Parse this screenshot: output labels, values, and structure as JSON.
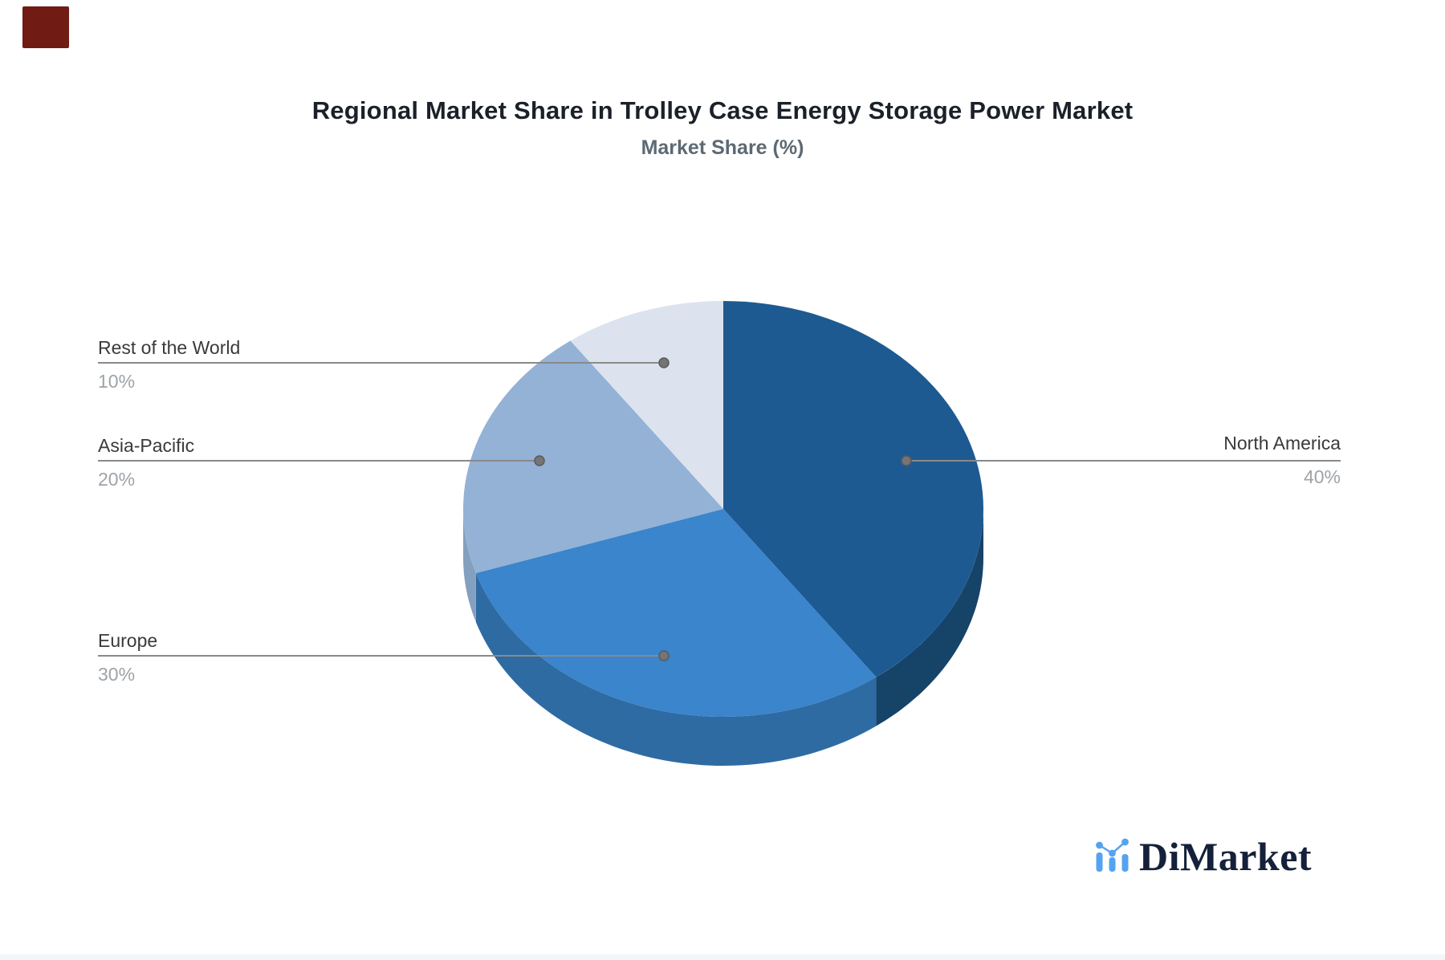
{
  "page": {
    "background": "#ffffff",
    "top_left_box_color": "#701b13",
    "footer_strip_color": "#f1f6f9"
  },
  "header": {
    "title": "Regional Market Share in Trolley Case Energy Storage Power Market",
    "subtitle": "Market Share (%)"
  },
  "chart_data": {
    "type": "pie",
    "style": "pie3d",
    "title": "Regional Market Share in Trolley Case Energy Storage Power Market",
    "subtitle": "Market Share (%)",
    "unit": "%",
    "direction": "clockwise",
    "start_angle_deg": 0,
    "legend_position": "none",
    "categories": [
      "North America",
      "Europe",
      "Asia-Pacific",
      "Rest of the World"
    ],
    "values": [
      40,
      30,
      20,
      10
    ],
    "slices": [
      {
        "label": "North America",
        "value": 40,
        "pct_label": "40%",
        "color": "#1e5a92",
        "side_color": "#164368"
      },
      {
        "label": "Europe",
        "value": 30,
        "pct_label": "30%",
        "color": "#3a85cb",
        "side_color": "#2e6ba2"
      },
      {
        "label": "Asia-Pacific",
        "value": 20,
        "pct_label": "20%",
        "color": "#93b2d6",
        "side_color": "#84a0bf"
      },
      {
        "label": "Rest of the World",
        "value": 10,
        "pct_label": "10%",
        "color": "#dce3ee",
        "side_color": "#c2cddd"
      }
    ],
    "label_style": {
      "leader_line_color": "#8a8a8a",
      "dot_fill_color": "#757575",
      "dot_stroke_color": "#5a5a5a",
      "name_color": "#3a3a3a",
      "pct_color": "#9da3a8"
    }
  },
  "logo": {
    "text": "DiMarket",
    "icon": "trend-bars-icon",
    "icon_color": "#55a3f0",
    "text_color": "#15213b"
  }
}
